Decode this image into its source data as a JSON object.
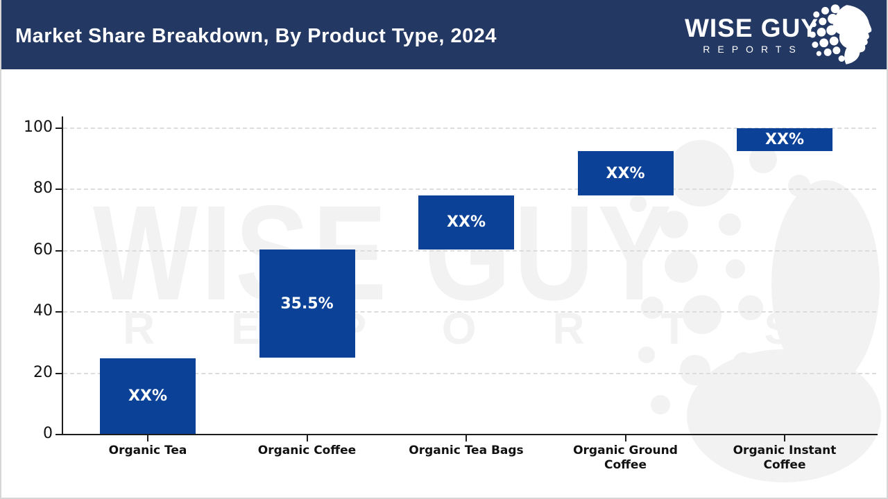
{
  "header": {
    "title": "Market Share Breakdown, By Product Type, 2024",
    "bg_color": "#233863",
    "logo": {
      "name_line": "WISE GUY",
      "sub_line": "REPORTS"
    }
  },
  "watermark": {
    "line1": "WISE GUY",
    "line2": "R E P O R T S"
  },
  "chart_data": {
    "type": "bar",
    "subtype": "waterfall",
    "title": "Market Share Breakdown, By Product Type, 2024",
    "categories": [
      "Organic Tea",
      "Organic Coffee",
      "Organic Tea Bags",
      "Organic Ground Coffee",
      "Organic Instant Coffee"
    ],
    "series": [
      {
        "name": "Market Share (%)",
        "segments": [
          {
            "category": "Organic Tea",
            "start": 0,
            "end": 25,
            "label": "XX%"
          },
          {
            "category": "Organic Coffee",
            "start": 25,
            "end": 60.5,
            "label": "35.5%"
          },
          {
            "category": "Organic Tea Bags",
            "start": 60.5,
            "end": 78,
            "label": "XX%"
          },
          {
            "category": "Organic Ground Coffee",
            "start": 78,
            "end": 92.5,
            "label": "XX%"
          },
          {
            "category": "Organic Instant Coffee",
            "start": 92.5,
            "end": 100,
            "label": "XX%"
          }
        ]
      }
    ],
    "ylim": [
      0,
      100
    ],
    "yticks": [
      0,
      20,
      40,
      60,
      80,
      100
    ],
    "xlabel": "",
    "ylabel": "",
    "grid": "horizontal-dashed",
    "legend": "none",
    "bar_color": "#0b4298",
    "axis_color": "#1c1c1c",
    "grid_color": "#dcdcdc",
    "watermark_color": "#f2f2f2"
  }
}
